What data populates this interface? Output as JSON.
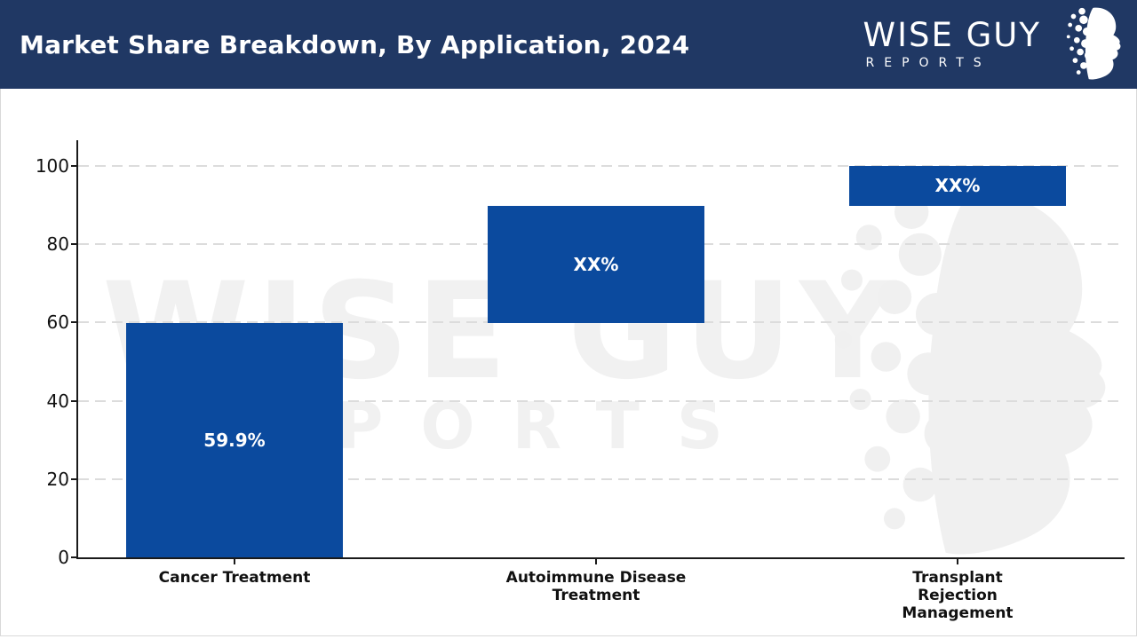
{
  "header": {
    "title": "Market Share Breakdown, By Application, 2024",
    "logo": {
      "wordmark": "WISE GUY",
      "subtext": "REPORTS"
    }
  },
  "watermark": {
    "wordmark": "WISE GUY",
    "subtext": "REPORTS"
  },
  "chart_data": {
    "type": "bar",
    "variant": "waterfall",
    "title": "Market Share Breakdown, By Application, 2024",
    "categories": [
      "Cancer Treatment",
      "Autoimmune Disease Treatment",
      "Transplant Rejection Management"
    ],
    "category_label_lines": [
      [
        "Cancer Treatment"
      ],
      [
        "Autoimmune Disease",
        "Treatment"
      ],
      [
        "Transplant",
        "Rejection",
        "Management"
      ]
    ],
    "segments": [
      {
        "category": "Cancer Treatment",
        "start": 0,
        "end": 59.9,
        "label": "59.9%"
      },
      {
        "category": "Autoimmune Disease Treatment",
        "start": 59.9,
        "end": 89.8,
        "label": "XX%"
      },
      {
        "category": "Transplant Rejection Management",
        "start": 89.8,
        "end": 100,
        "label": "XX%"
      }
    ],
    "ylim": [
      0,
      100
    ],
    "yticks": [
      0,
      20,
      40,
      60,
      80,
      100
    ],
    "grid": {
      "horizontal": true,
      "style": "dashed"
    },
    "legend": "none",
    "bar_color": "#0b4a9e",
    "bar_label_color": "#ffffff"
  },
  "colors": {
    "header_bg": "#203864",
    "bar": "#0b4a9e",
    "grid": "#dcdcdc",
    "axis": "#1a1a1a",
    "tick_text": "#111111",
    "watermark": "#f1f1f1"
  }
}
